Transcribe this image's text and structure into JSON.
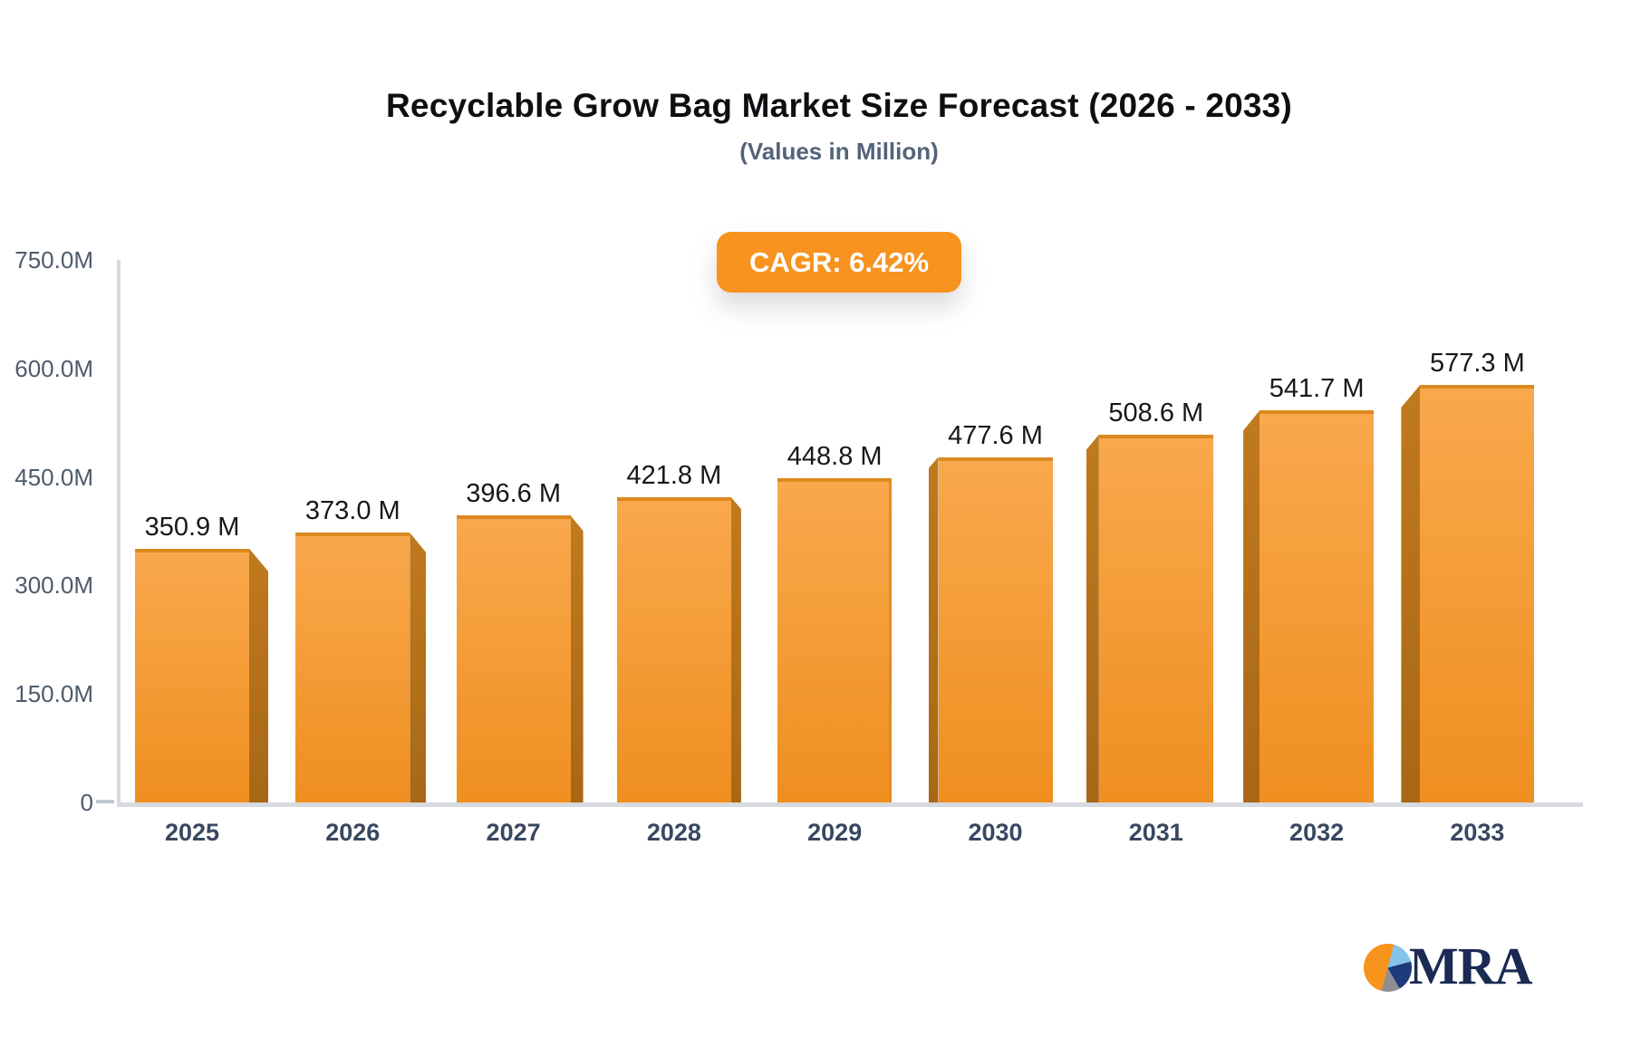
{
  "header": {
    "title": "Recyclable Grow Bag Market Size Forecast (2026 - 2033)",
    "subtitle": "(Values in Million)",
    "badge_label": "CAGR: 6.42%",
    "badge_color": "#f7931e"
  },
  "chart_data": {
    "type": "bar",
    "title": "Recyclable Grow Bag Market Size Forecast (2026 - 2033)",
    "subtitle": "(Values in Million)",
    "annotation": "CAGR: 6.42%",
    "categories": [
      "2025",
      "2026",
      "2027",
      "2028",
      "2029",
      "2030",
      "2031",
      "2032",
      "2033"
    ],
    "values": [
      350.9,
      373.0,
      396.6,
      421.8,
      448.8,
      477.6,
      508.6,
      541.7,
      577.3
    ],
    "value_labels": [
      "350.9 M",
      "373.0 M",
      "396.6 M",
      "421.8 M",
      "448.8 M",
      "477.6 M",
      "508.6 M",
      "541.7 M",
      "577.3 M"
    ],
    "xlabel": "",
    "ylabel": "",
    "ylim": [
      0,
      750
    ],
    "yticks": [
      {
        "value": 750,
        "label": "750.0M"
      },
      {
        "value": 600,
        "label": "600.0M"
      },
      {
        "value": 450,
        "label": "450.0M"
      },
      {
        "value": 300,
        "label": "300.0M"
      },
      {
        "value": 150,
        "label": "150.0M"
      },
      {
        "value": 0,
        "label": "0"
      }
    ],
    "grid": false,
    "legend": "none",
    "bar_color_top": "#f9a84d",
    "bar_color_bottom": "#ef8f20",
    "bar_side_color_top": "#c07a1e",
    "bar_side_color_bottom": "#a96716",
    "axis_color": "#d7dade"
  },
  "logo": {
    "text": "MRA",
    "text_color": "#1a2a52",
    "pie": {
      "slices": [
        {
          "name": "orange",
          "color": "#f7941d",
          "from": 0,
          "to": 180
        },
        {
          "name": "light-blue",
          "color": "#85c3e8",
          "from": 180,
          "to": 240
        },
        {
          "name": "navy",
          "color": "#1e3a7a",
          "from": 240,
          "to": 315
        },
        {
          "name": "gray",
          "color": "#8e8e93",
          "from": 315,
          "to": 360
        }
      ],
      "start_angle": 195
    }
  }
}
